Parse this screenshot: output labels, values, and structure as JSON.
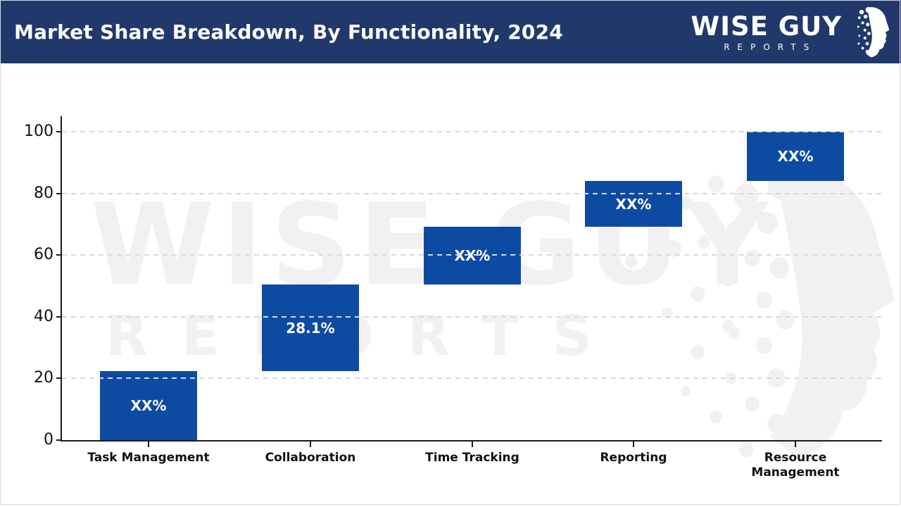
{
  "header": {
    "title": "Market Share Breakdown, By Functionality, 2024",
    "logo": {
      "line1": "WISE GUY",
      "line2": "REPORTS"
    }
  },
  "watermark": {
    "line1": "WISE GUY",
    "line2": "REPORTS"
  },
  "colors": {
    "header_bg": "#21386a",
    "bar": "#0d4ba2",
    "grid": "#d9d9d9",
    "axis": "#1a1a1a",
    "watermark": "#f1f1f4",
    "bar_label": "#ffffff"
  },
  "chart_data": {
    "type": "bar",
    "subtype": "waterfall",
    "title": "Market Share Breakdown, By Functionality, 2024",
    "xlabel": "",
    "ylabel": "",
    "ylim": [
      0,
      100
    ],
    "yticks": [
      0,
      20,
      40,
      60,
      80,
      100
    ],
    "grid": "horizontal-dashed",
    "categories": [
      "Task Management",
      "Collaboration",
      "Time Tracking",
      "Reporting",
      "Resource Management"
    ],
    "segments": [
      {
        "category": "Task Management",
        "start": 0,
        "end": 22.3,
        "value": 22.3,
        "label": "XX%"
      },
      {
        "category": "Collaboration",
        "start": 22.3,
        "end": 50.4,
        "value": 28.1,
        "label": "28.1%"
      },
      {
        "category": "Time Tracking",
        "start": 50.4,
        "end": 69.1,
        "value": 18.7,
        "label": "XX%"
      },
      {
        "category": "Reporting",
        "start": 69.1,
        "end": 84.0,
        "value": 14.9,
        "label": "XX%"
      },
      {
        "category": "Resource Management",
        "start": 84.0,
        "end": 100,
        "value": 16.0,
        "label": "XX%",
        "display": "Resource\nManagement"
      }
    ]
  }
}
